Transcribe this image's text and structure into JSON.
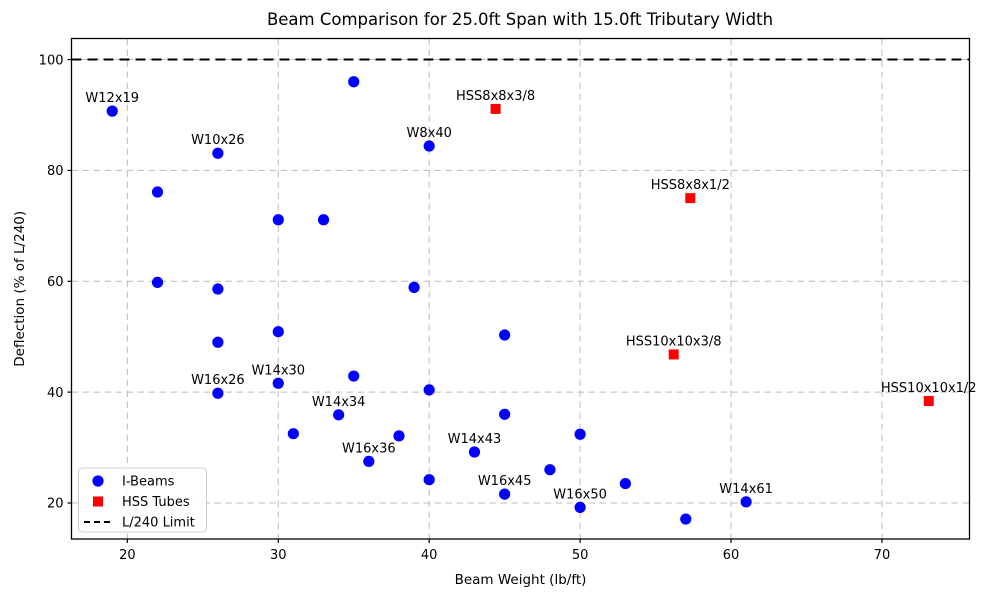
{
  "chart_data": {
    "type": "scatter",
    "title": "Beam Comparison for 25.0ft Span with 15.0ft Tributary Width",
    "xlabel": "Beam Weight (lb/ft)",
    "ylabel": "Deflection (% of L/240)",
    "xlim": [
      16.3,
      75.8
    ],
    "ylim": [
      13.5,
      103.8
    ],
    "xticks": [
      20,
      30,
      40,
      50,
      60,
      70
    ],
    "yticks": [
      20,
      40,
      60,
      80,
      100
    ],
    "grid": true,
    "legend_position": "lower-left",
    "limit_line": {
      "y": 100,
      "label": "L/240 Limit",
      "style": "dashed",
      "color": "#000000"
    },
    "series": [
      {
        "name": "I-Beams",
        "marker": "circle",
        "color": "#0000ff",
        "points": [
          {
            "x": 19,
            "y": 90.7,
            "label": "W12x19"
          },
          {
            "x": 22,
            "y": 76.1
          },
          {
            "x": 22,
            "y": 59.8
          },
          {
            "x": 26,
            "y": 83.1,
            "label": "W10x26"
          },
          {
            "x": 26,
            "y": 58.6
          },
          {
            "x": 26,
            "y": 49.0
          },
          {
            "x": 26,
            "y": 39.8,
            "label": "W16x26"
          },
          {
            "x": 30,
            "y": 71.1
          },
          {
            "x": 30,
            "y": 50.9
          },
          {
            "x": 30,
            "y": 41.6,
            "label": "W14x30"
          },
          {
            "x": 31,
            "y": 32.5
          },
          {
            "x": 33,
            "y": 71.1
          },
          {
            "x": 34,
            "y": 35.9,
            "label": "W14x34"
          },
          {
            "x": 35,
            "y": 96.0
          },
          {
            "x": 35,
            "y": 42.9
          },
          {
            "x": 36,
            "y": 27.5,
            "label": "W16x36"
          },
          {
            "x": 38,
            "y": 32.1
          },
          {
            "x": 39,
            "y": 58.9
          },
          {
            "x": 40,
            "y": 84.4,
            "label": "W8x40"
          },
          {
            "x": 40,
            "y": 40.4
          },
          {
            "x": 40,
            "y": 24.2
          },
          {
            "x": 43,
            "y": 29.2,
            "label": "W14x43"
          },
          {
            "x": 45,
            "y": 50.3
          },
          {
            "x": 45,
            "y": 36.0
          },
          {
            "x": 45,
            "y": 21.6,
            "label": "W16x45"
          },
          {
            "x": 48,
            "y": 26.0
          },
          {
            "x": 50,
            "y": 32.4
          },
          {
            "x": 50,
            "y": 19.2,
            "label": "W16x50"
          },
          {
            "x": 53,
            "y": 23.5
          },
          {
            "x": 57,
            "y": 17.1
          },
          {
            "x": 61,
            "y": 20.2,
            "label": "W14x61"
          }
        ]
      },
      {
        "name": "HSS Tubes",
        "marker": "square",
        "color": "#ff0000",
        "points": [
          {
            "x": 44.4,
            "y": 91.1,
            "label": "HSS8x8x3/8"
          },
          {
            "x": 57.3,
            "y": 75.0,
            "label": "HSS8x8x1/2"
          },
          {
            "x": 56.2,
            "y": 46.8,
            "label": "HSS10x10x3/8"
          },
          {
            "x": 73.1,
            "y": 38.4,
            "label": "HSS10x10x1/2"
          }
        ]
      }
    ]
  }
}
